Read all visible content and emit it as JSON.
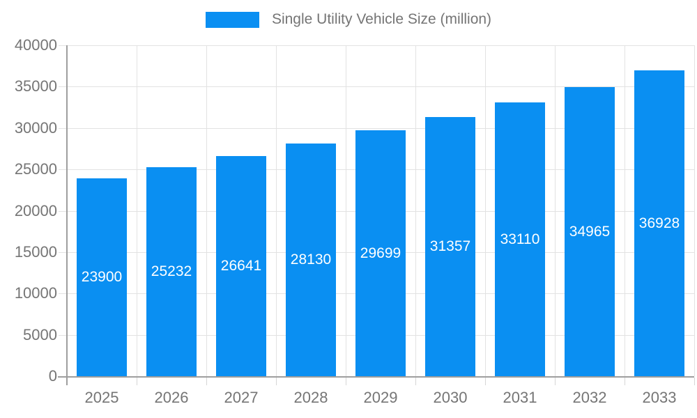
{
  "legend": {
    "label": "Single Utility Vehicle Size (million)"
  },
  "chart_data": {
    "type": "bar",
    "title": "Single Utility Vehicle Size (million)",
    "categories": [
      "2025",
      "2026",
      "2027",
      "2028",
      "2029",
      "2030",
      "2031",
      "2032",
      "2033"
    ],
    "values": [
      23900,
      25232,
      26641,
      28130,
      29699,
      31357,
      33110,
      34965,
      36928
    ],
    "xlabel": "",
    "ylabel": "",
    "ylim": [
      0,
      40000
    ],
    "ytick_step": 5000,
    "yticks": [
      0,
      5000,
      10000,
      15000,
      20000,
      25000,
      30000,
      35000,
      40000
    ],
    "grid": true,
    "legend_position": "top",
    "value_labels": "inside-center",
    "colors": {
      "bar": "#0a8ff2",
      "gridline": "#e2e2e2",
      "axis": "#9e9e9e",
      "tick_label": "#757575",
      "value_label": "#ffffff"
    }
  }
}
